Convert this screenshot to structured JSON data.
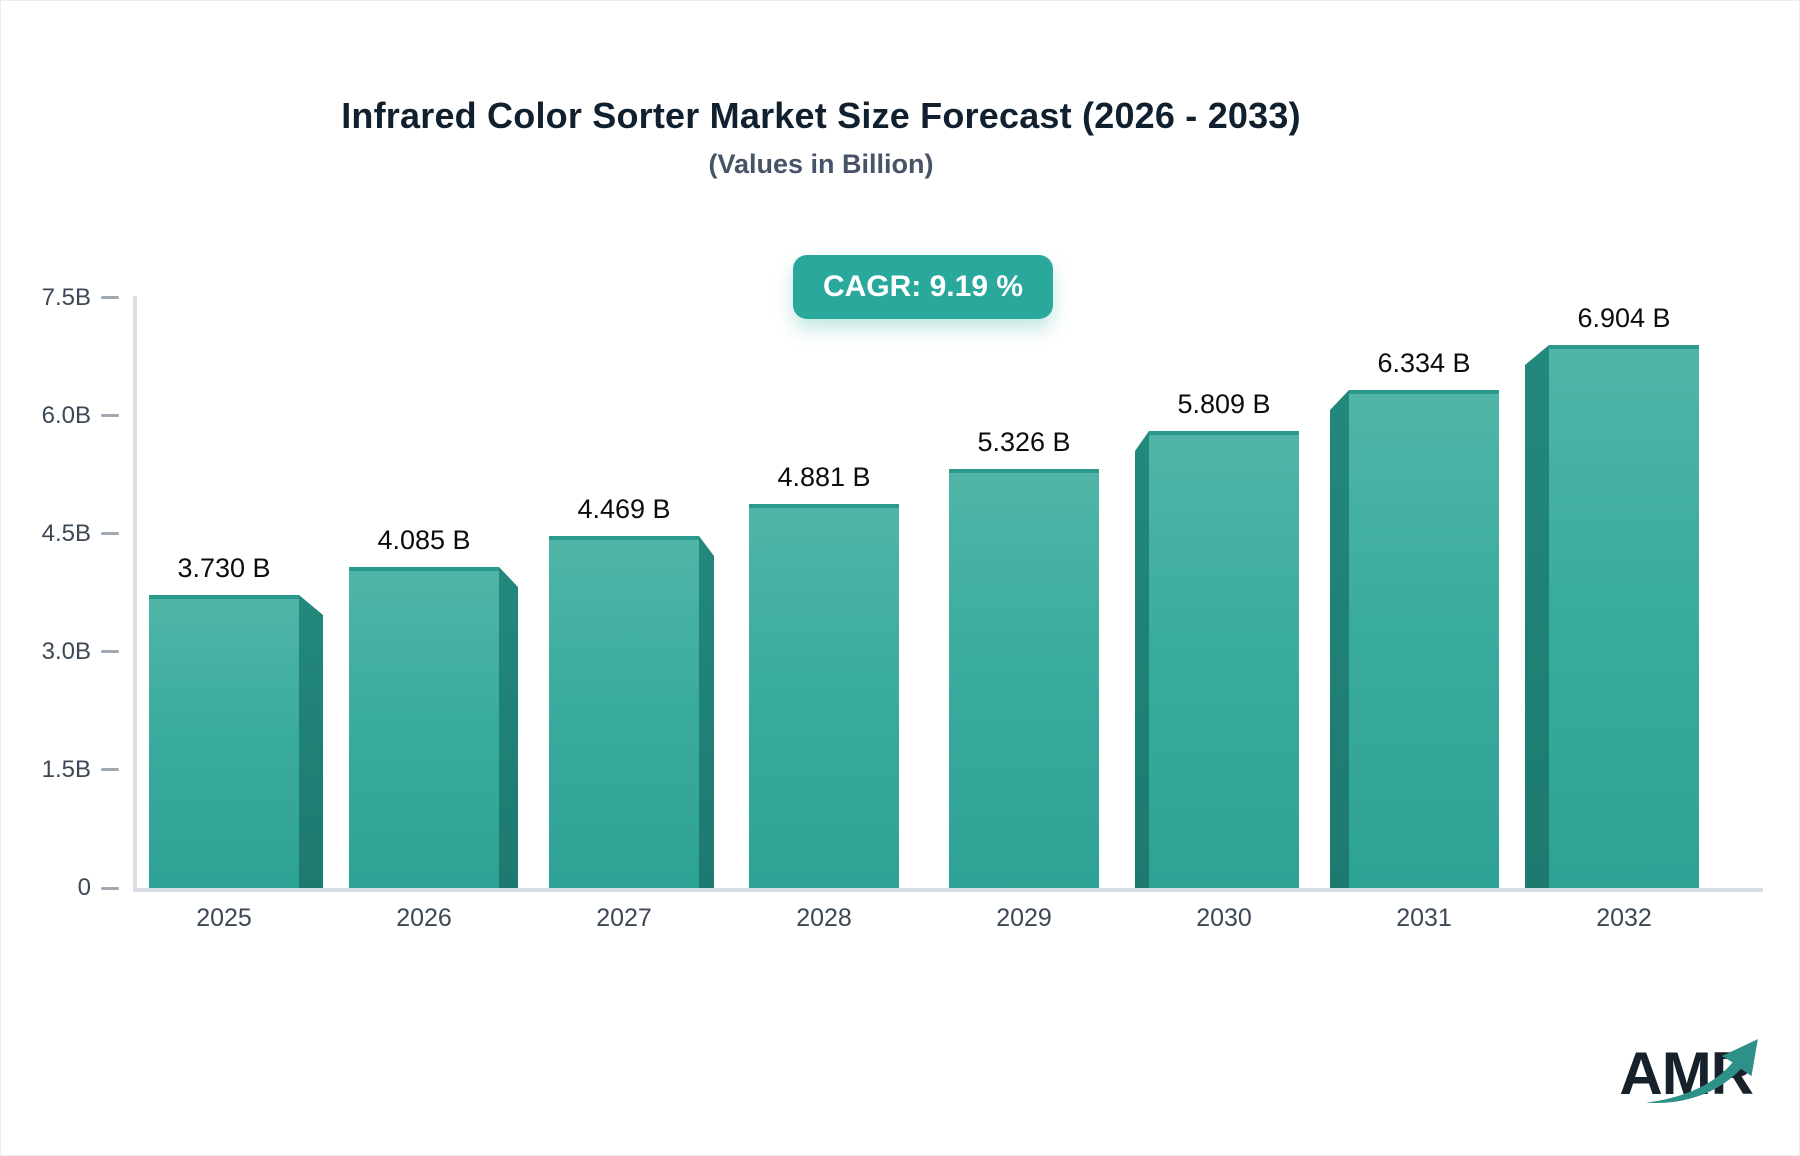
{
  "header": {
    "title": "Infrared Color Sorter Market Size Forecast (2026 - 2033)",
    "subtitle": "(Values in Billion)"
  },
  "badge": {
    "label": "CAGR: 9.19 %"
  },
  "chart_data": {
    "type": "bar",
    "title": "Infrared Color Sorter Market Size Forecast (2026 - 2033)",
    "subtitle": "(Values in Billion)",
    "unit": "Billion",
    "categories": [
      "2025",
      "2026",
      "2027",
      "2028",
      "2029",
      "2030",
      "2031",
      "2032"
    ],
    "values": [
      3.73,
      4.085,
      4.469,
      4.881,
      5.326,
      5.809,
      6.334,
      6.904
    ],
    "value_labels": [
      "3.730 B",
      "4.085 B",
      "4.469 B",
      "4.881 B",
      "5.326 B",
      "5.809 B",
      "6.334 B",
      "6.904 B"
    ],
    "ylim": [
      0,
      7.5
    ],
    "yticks": [
      0,
      1.5,
      3.0,
      4.5,
      6.0,
      7.5
    ],
    "ytick_labels": [
      "0",
      "1.5B",
      "3.0B",
      "4.5B",
      "6.0B",
      "7.5B"
    ],
    "grid": false,
    "legend": false,
    "cagr": "9.19 %",
    "colors": {
      "bar_face_top": "#50B5A7",
      "bar_face_bottom": "#2EA295",
      "bar_side": "#1D7A6F",
      "bar_top_edge": "#2C998D",
      "badge_background": "#2AA89B",
      "badge_text": "#FFFFFF",
      "axis_line": "#D7DCE3",
      "tick_text": "#3D4856",
      "value_text": "#0C0C0C",
      "title_text": "#10202E",
      "subtitle_text": "#475467"
    }
  },
  "logo": {
    "text": "AMR",
    "arrow_color": "#2E9187"
  }
}
